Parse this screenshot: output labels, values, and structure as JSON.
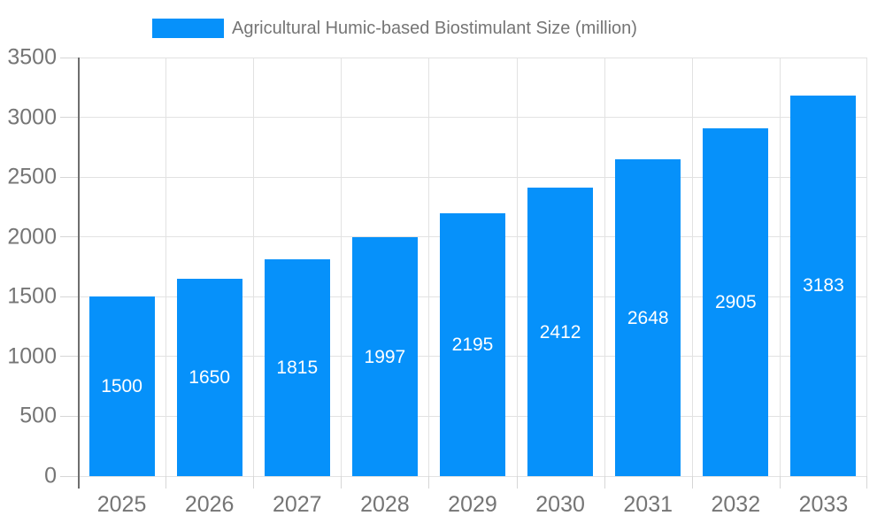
{
  "chart_data": {
    "type": "bar",
    "title": "Agricultural Humic-based Biostimulant Size (million)",
    "categories": [
      "2025",
      "2026",
      "2027",
      "2028",
      "2029",
      "2030",
      "2031",
      "2032",
      "2033"
    ],
    "values": [
      1500,
      1650,
      1815,
      1997,
      2195,
      2412,
      2648,
      2905,
      3183
    ],
    "ylim": [
      0,
      3500
    ],
    "ytick_step": 500,
    "ytick_labels": [
      "0",
      "500",
      "1000",
      "1500",
      "2000",
      "2500",
      "3000",
      "3500"
    ],
    "legend_position": "top",
    "grid": true,
    "value_labels_inside_bars": true,
    "xlabel": "",
    "ylabel": ""
  },
  "colors": {
    "bar": "#0691fa",
    "bar_value_text": "#ffffff",
    "axis_text": "#757575",
    "legend_text": "#757575",
    "gridline": "#e2e2e2",
    "tick": "#d6d6d6",
    "axis_line": "#6e6e6e",
    "background": "#ffffff"
  }
}
